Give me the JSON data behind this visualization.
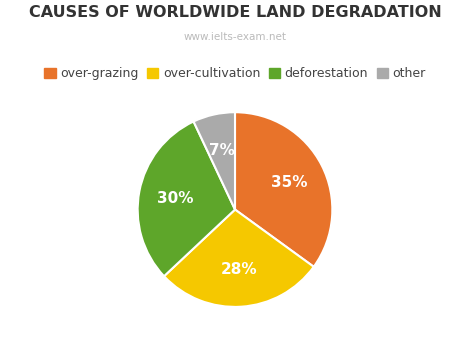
{
  "title": "CAUSES OF WORLDWIDE LAND DEGRADATION",
  "subtitle": "www.ielts-exam.net",
  "labels": [
    "over-grazing",
    "over-cultivation",
    "deforestation",
    "other"
  ],
  "values": [
    35,
    28,
    30,
    7
  ],
  "colors": [
    "#E8732A",
    "#F5C800",
    "#5EA62A",
    "#AAAAAA"
  ],
  "pct_labels": [
    "35%",
    "28%",
    "30%",
    "7%"
  ],
  "title_fontsize": 11.5,
  "subtitle_fontsize": 7.5,
  "legend_fontsize": 9,
  "pct_fontsize": 11,
  "startangle": 90,
  "background_color": "#ffffff"
}
